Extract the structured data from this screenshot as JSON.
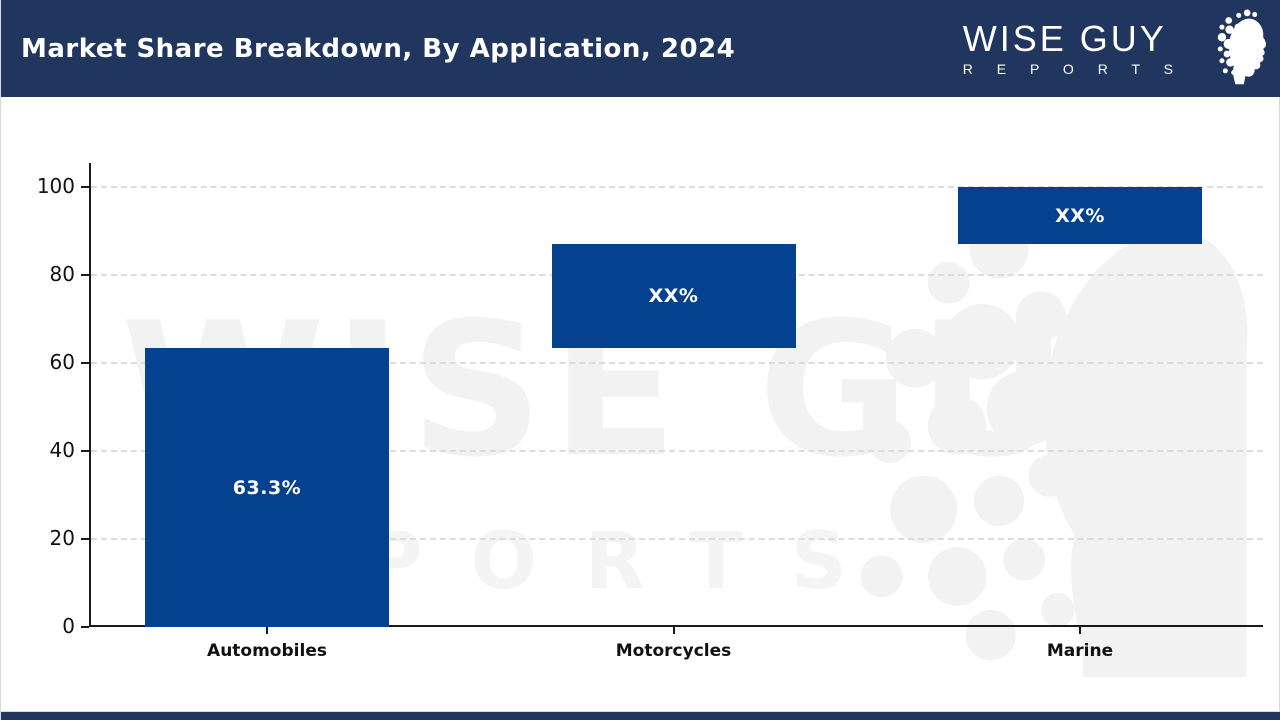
{
  "header": {
    "title": "Market Share Breakdown, By Application, 2024",
    "logo": {
      "line1": "WISE GUY",
      "line2": "R E P O R T S"
    }
  },
  "watermark": {
    "line1": "WISE GUY",
    "line2": "REPORTS"
  },
  "chart_data": {
    "type": "bar",
    "subtype": "waterfall",
    "title": "Market Share Breakdown, By Application, 2024",
    "xlabel": "",
    "ylabel": "",
    "ylim": [
      0,
      100
    ],
    "yticks": [
      0,
      20,
      40,
      60,
      80,
      100
    ],
    "grid": "horizontal-dashed",
    "legend": "none",
    "bar_color": "#04418f",
    "bar_label_color": "#ffffff",
    "categories": [
      "Automobiles",
      "Motorcycles",
      "Marine"
    ],
    "bars": [
      {
        "category": "Automobiles",
        "start": 0,
        "end": 63.3,
        "label": "63.3%"
      },
      {
        "category": "Motorcycles",
        "start": 63.3,
        "end": 87,
        "label": "XX%"
      },
      {
        "category": "Marine",
        "start": 87,
        "end": 100,
        "label": "XX%"
      }
    ]
  }
}
